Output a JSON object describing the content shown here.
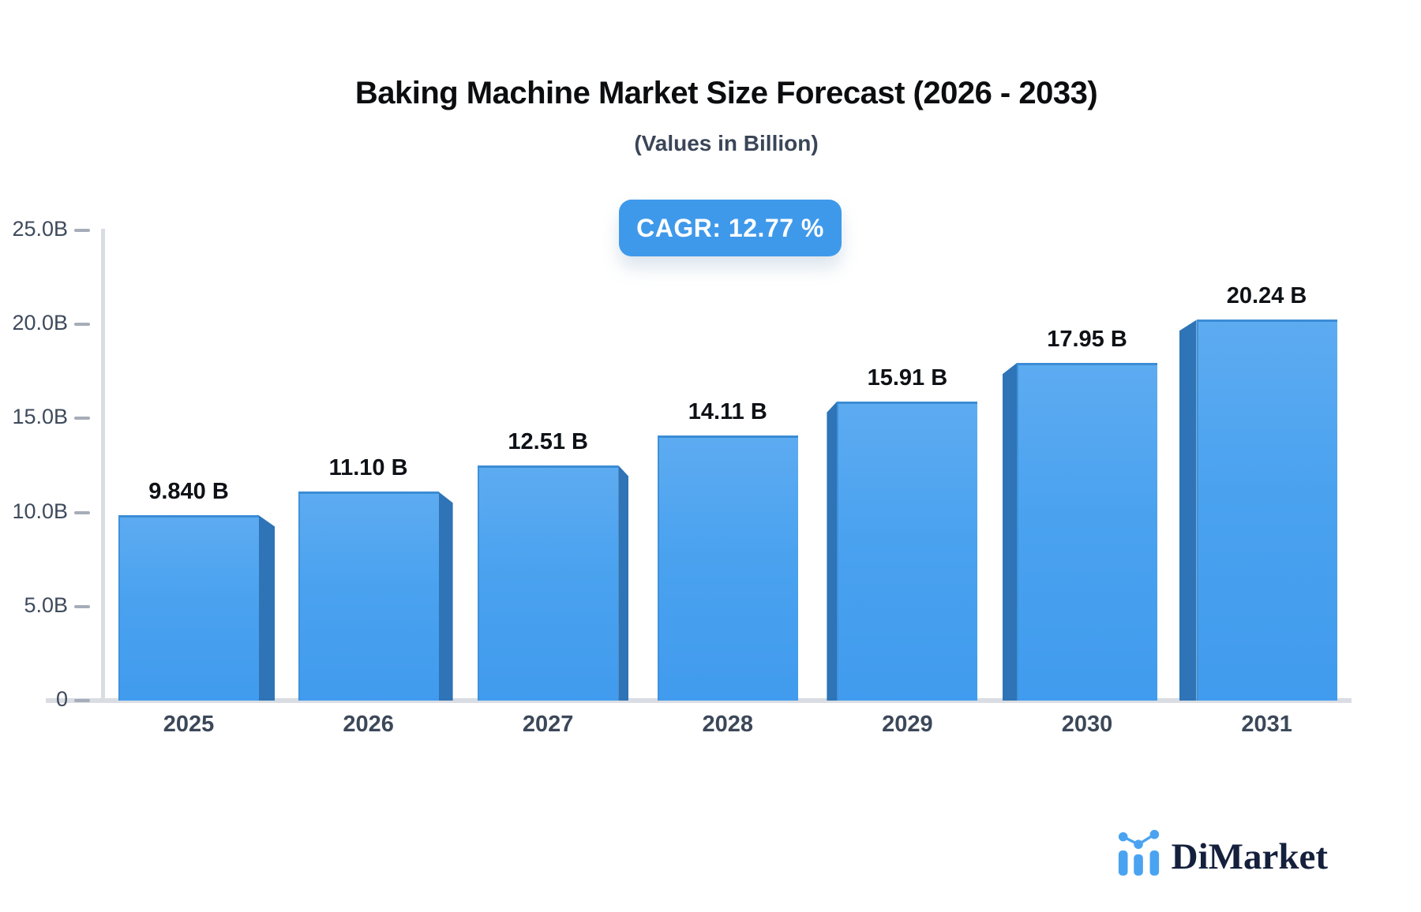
{
  "header": {
    "title": "Baking Machine Market Size Forecast (2026 - 2033)",
    "subtitle": "(Values in Billion)",
    "badge_label": "CAGR: 12.77 %"
  },
  "chart_data": {
    "type": "bar",
    "title": "Baking Machine Market Size Forecast (2026 - 2033)",
    "subtitle": "(Values in Billion)",
    "categories": [
      "2025",
      "2026",
      "2027",
      "2028",
      "2029",
      "2030",
      "2031"
    ],
    "values": [
      9.84,
      11.1,
      12.51,
      14.11,
      15.91,
      17.95,
      20.24
    ],
    "value_labels": [
      "9.840 B",
      "11.10 B",
      "12.51 B",
      "14.11 B",
      "15.91 B",
      "17.95 B",
      "20.24 B"
    ],
    "cagr_label": "CAGR: 12.77 %",
    "xlabel": "",
    "ylabel": "",
    "ylim": [
      0,
      25
    ],
    "ytick_values": [
      0,
      5,
      10,
      15,
      20,
      25
    ],
    "ytick_labels": [
      "0",
      "5.0B",
      "10.0B",
      "15.0B",
      "20.0B",
      "25.0B"
    ],
    "grid": false,
    "legend": false,
    "bar_color": "#4aa2ef",
    "bar_side_color": "#2e74b6",
    "style": "3d-perspective-center"
  },
  "logo": {
    "text": "DiMarket",
    "icon": "mini-bar-chart-icon",
    "icon_color": "#4aa3f0",
    "text_color": "#14203c"
  },
  "colors": {
    "accent_blue": "#3f99ea",
    "axis_gray": "#d9dde3",
    "tick_gray": "#a6adb8",
    "label_slate": "#3c4859",
    "title_black": "#0c0d0f",
    "background": "#ffffff"
  }
}
